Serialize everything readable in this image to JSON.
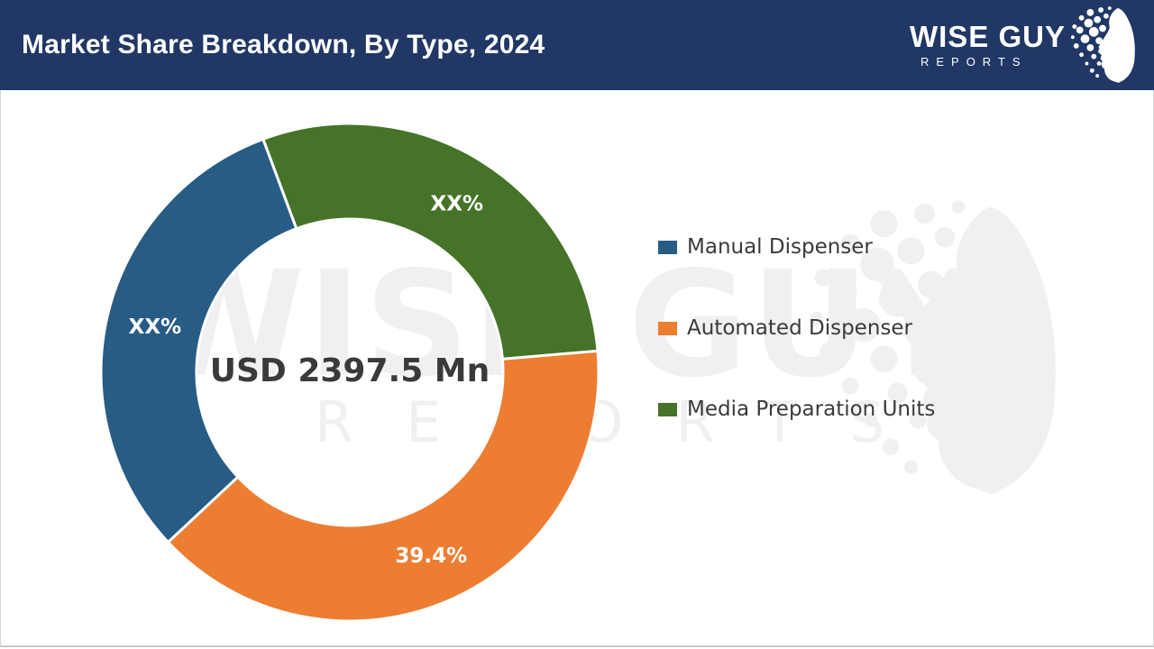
{
  "header": {
    "title": "Market Share Breakdown, By Type, 2024",
    "background": "#213866",
    "logo": {
      "name": "WISE GUY",
      "sub": "REPORTS"
    }
  },
  "watermark": {
    "name": "WISE GUY",
    "sub": "REPORTS",
    "color": "#f0f0f2"
  },
  "chart_data": {
    "type": "pie",
    "variant": "donut",
    "title": "Market Share Breakdown, By Type, 2024",
    "center_label": "USD 2397.5 Mn",
    "start_angle_deg": -20.4,
    "clockwise": true,
    "slices": [
      {
        "name": "Media Preparation Units",
        "display_label": "XX%",
        "pct_est": 29.3,
        "color": "#467327"
      },
      {
        "name": "Automated Dispenser",
        "display_label": "39.4%",
        "pct_est": 39.4,
        "color": "#ed7d31"
      },
      {
        "name": "Manual Dispenser",
        "display_label": "XX%",
        "pct_est": 31.3,
        "color": "#275c85"
      }
    ],
    "legend": {
      "position": "right",
      "items": [
        {
          "label": "Manual Dispenser",
          "color": "#275c85"
        },
        {
          "label": "Automated Dispenser",
          "color": "#ed7d31"
        },
        {
          "label": "Media Preparation Units",
          "color": "#467327"
        }
      ]
    }
  },
  "colors": {
    "center_text": "#3a3a3a",
    "legend_text": "#3a3a3a",
    "slice_divider": "#ffffff"
  }
}
